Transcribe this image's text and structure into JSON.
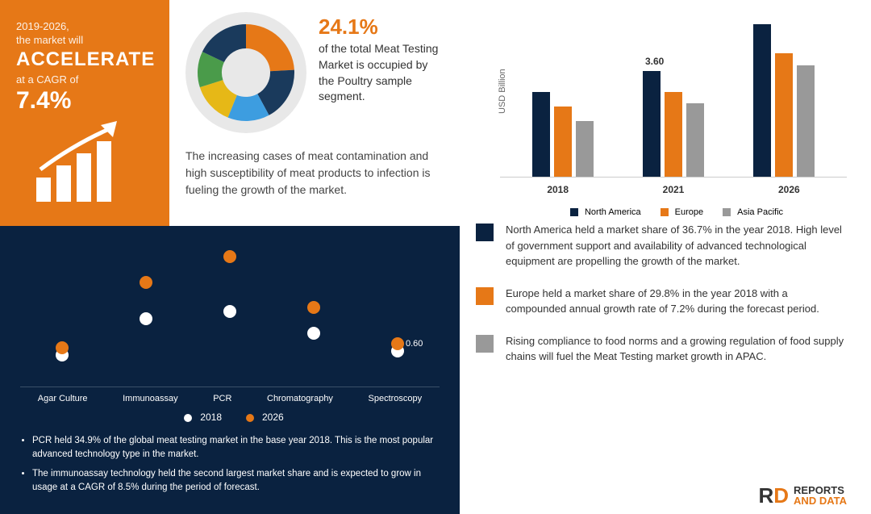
{
  "colors": {
    "orange": "#e67817",
    "navy": "#0a2240",
    "gray": "#999999",
    "white": "#ffffff",
    "lightgray": "#e8e8e8",
    "donut": [
      "#e67817",
      "#1a3a5c",
      "#3d9de0",
      "#e6b817",
      "#4a9b4a",
      "#1a3a5c"
    ]
  },
  "cagr_box": {
    "years": "2019-2026,",
    "line2": "the market will",
    "accelerate": "ACCELERATE",
    "cagr_label": "at a CAGR of",
    "pct": "7.4%"
  },
  "donut": {
    "big": "24.1%",
    "text": "of the total Meat Testing Market is occupied by the Poultry sample segment.",
    "slices": [
      24.1,
      18,
      14,
      14,
      12,
      17.9
    ]
  },
  "para": "The increasing cases of meat contamination and high susceptibility of meat products to infection is fueling the growth of the market.",
  "scatter": {
    "categories": [
      "Agar Culture",
      "Immunoassay",
      "PCR",
      "Chromatography",
      "Spectroscopy"
    ],
    "series": [
      {
        "name": "2018",
        "color": "#ffffff",
        "values": [
          0.45,
          0.95,
          1.05,
          0.75,
          0.5
        ]
      },
      {
        "name": "2026",
        "color": "#e67817",
        "values": [
          0.55,
          1.45,
          1.8,
          1.1,
          0.6
        ]
      }
    ],
    "ymax": 2.0,
    "label_point": {
      "cat": 4,
      "series": 1,
      "text": "0.60"
    },
    "bullets": [
      "PCR held 34.9% of the global meat testing market in the base year 2018. This is the most popular advanced technology type in the market.",
      "The immunoassay technology held the second largest market share and is expected to grow in usage at a CAGR of 8.5% during the period of forecast."
    ]
  },
  "bars": {
    "ylabel": "USD Billion",
    "categories": [
      "2018",
      "2021",
      "2026"
    ],
    "series": [
      {
        "name": "North America",
        "color": "#0a2240",
        "values": [
          2.9,
          3.6,
          5.2
        ]
      },
      {
        "name": "Europe",
        "color": "#e67817",
        "values": [
          2.4,
          2.9,
          4.2
        ]
      },
      {
        "name": "Asia Pacific",
        "color": "#999999",
        "values": [
          1.9,
          2.5,
          3.8
        ]
      }
    ],
    "ymax": 5.5,
    "label_point": {
      "cat": 1,
      "series": 0,
      "text": "3.60"
    }
  },
  "notes": [
    {
      "color": "#0a2240",
      "text": "North America held a market share of 36.7% in the year 2018. High level of government support and availability of advanced technological equipment are propelling the growth of the market."
    },
    {
      "color": "#e67817",
      "text": "Europe held a market share of 29.8% in the year 2018 with a compounded annual growth rate of 7.2% during the forecast period."
    },
    {
      "color": "#999999",
      "text": "Rising compliance to food norms and a growing regulation of food supply chains will fuel the Meat Testing market growth in APAC."
    }
  ],
  "logo": {
    "line1": "REPORTS",
    "line2": "AND DATA"
  }
}
